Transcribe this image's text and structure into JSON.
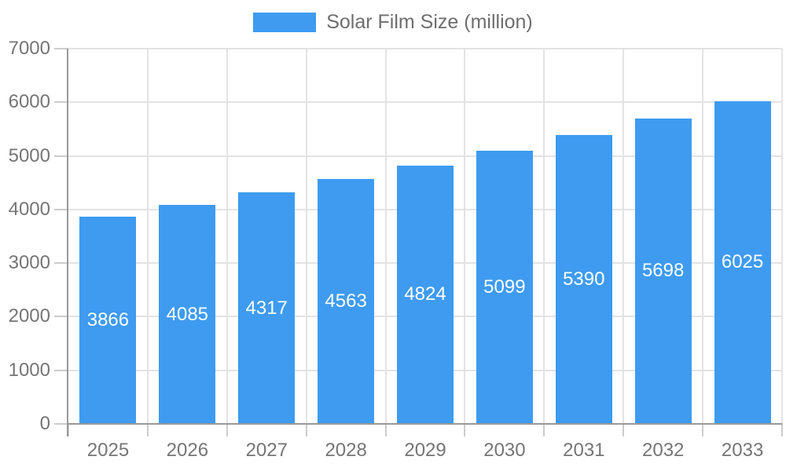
{
  "chart_data": {
    "type": "bar",
    "title": "",
    "legend": "Solar Film Size (million)",
    "legend_position": "top",
    "categories": [
      "2025",
      "2026",
      "2027",
      "2028",
      "2029",
      "2030",
      "2031",
      "2032",
      "2033"
    ],
    "series": [
      {
        "name": "Solar Film Size (million)",
        "values": [
          3866,
          4085,
          4317,
          4563,
          4824,
          5099,
          5390,
          5698,
          6025
        ]
      }
    ],
    "values": [
      3866,
      4085,
      4317,
      4563,
      4824,
      5099,
      5390,
      5698,
      6025
    ],
    "value_labels_visible": true,
    "xlabel": "",
    "ylabel": "",
    "ylim": [
      0,
      7000
    ],
    "y_ticks": [
      0,
      1000,
      2000,
      3000,
      4000,
      5000,
      6000,
      7000
    ],
    "grid": true,
    "colors": {
      "bar": "#3e9bf0",
      "value_label": "#ffffff",
      "axis_label": "#757575",
      "legend_text": "#6e6e6e",
      "gridline": "#e3e3e3",
      "axis_line": "#999999",
      "tick": "#cccccc",
      "background": "#ffffff"
    }
  }
}
